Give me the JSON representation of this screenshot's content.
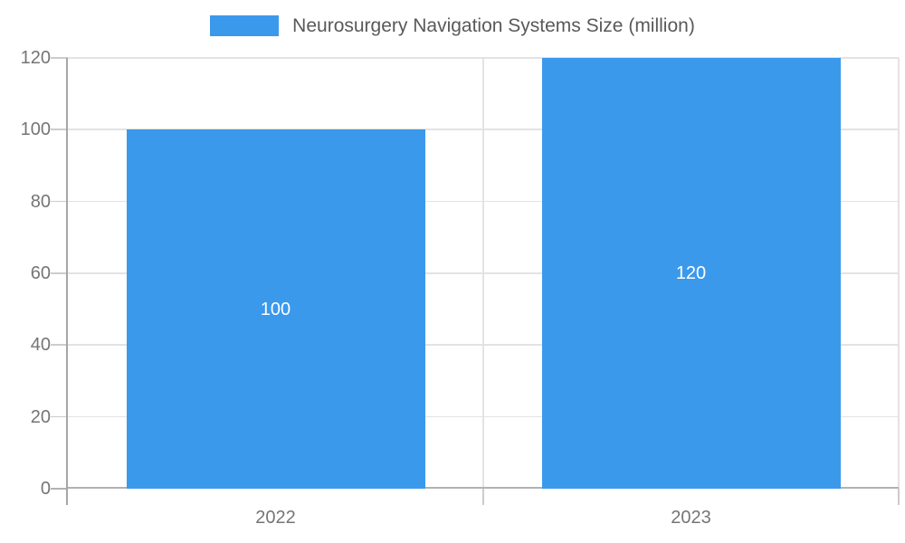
{
  "legend": {
    "label": "Neurosurgery Navigation Systems Size (million)"
  },
  "colors": {
    "bar": "#3B99EC",
    "grid": "#e3e3e3",
    "tick": "#cccccc",
    "axis_y": "#a6a6a6",
    "axis_x": "#b2b2b2",
    "tick_label": "#757575",
    "legend_text": "#58595b",
    "value_label": "#ffffff",
    "background": "#ffffff"
  },
  "chart_data": {
    "type": "bar",
    "title": "Neurosurgery Navigation Systems Size (million)",
    "series_name": "Neurosurgery Navigation Systems Size (million)",
    "categories": [
      "2022",
      "2023"
    ],
    "values": [
      100,
      120
    ],
    "bar_labels": [
      "100",
      "120"
    ],
    "xlabel": "",
    "ylabel": "",
    "ylim": [
      0,
      120
    ],
    "yticks": [
      0,
      20,
      40,
      60,
      80,
      100,
      120
    ],
    "grid": true,
    "legend_position": "top"
  }
}
